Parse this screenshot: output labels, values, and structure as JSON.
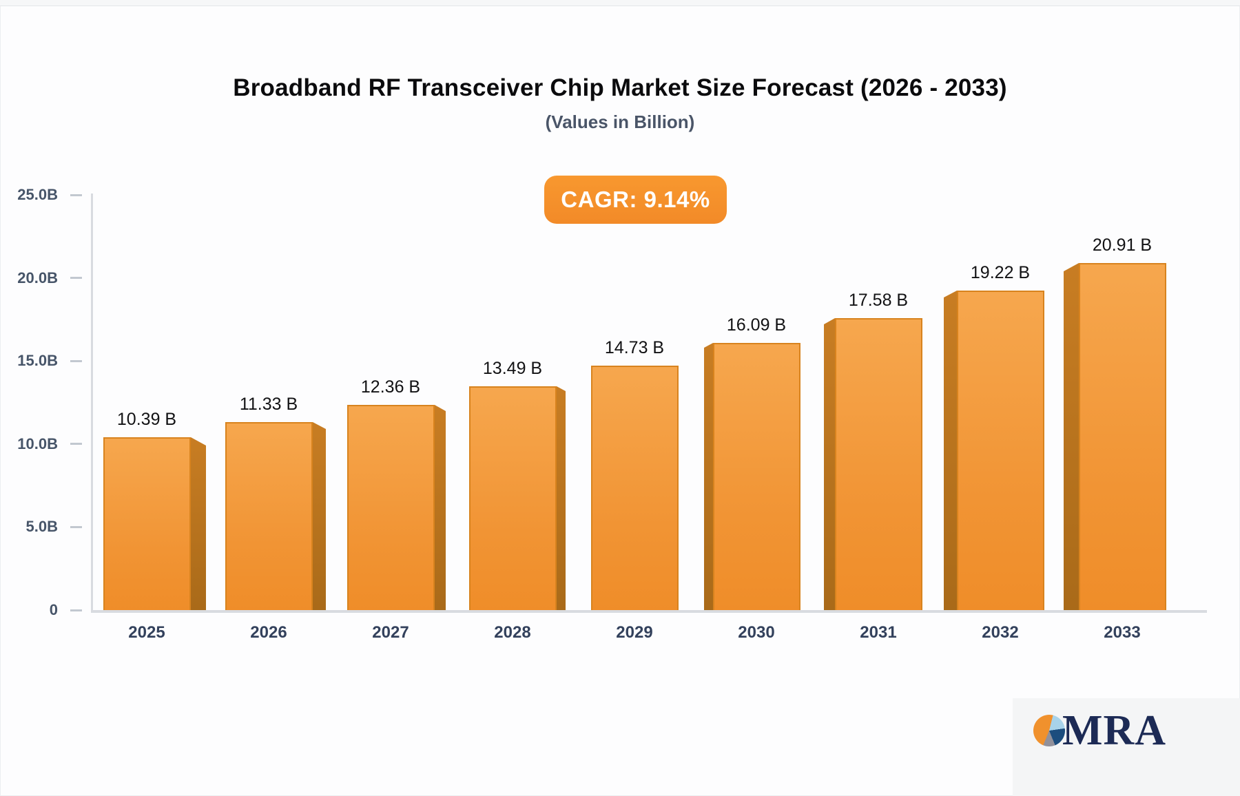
{
  "header": {
    "title": "Broadband RF Transceiver Chip Market Size Forecast (2026 - 2033)",
    "subtitle": "(Values in Billion)"
  },
  "badge": {
    "label": "CAGR: 9.14%",
    "color": "#f28a28"
  },
  "logo": {
    "text": "MRA"
  },
  "chart_data": {
    "type": "bar",
    "title": "Broadband RF Transceiver Chip Market Size Forecast (2026 - 2033)",
    "subtitle": "(Values in Billion)",
    "cagr": "9.14%",
    "categories": [
      "2025",
      "2026",
      "2027",
      "2028",
      "2029",
      "2030",
      "2031",
      "2032",
      "2033"
    ],
    "values": [
      10.39,
      11.33,
      12.36,
      13.49,
      14.73,
      16.09,
      17.58,
      19.22,
      20.91
    ],
    "bar_labels": [
      "10.39 B",
      "11.33 B",
      "12.36 B",
      "13.49 B",
      "14.73 B",
      "16.09 B",
      "17.58 B",
      "19.22 B",
      "20.91 B"
    ],
    "yticks": [
      {
        "value": 0,
        "label": "0"
      },
      {
        "value": 5,
        "label": "5.0B"
      },
      {
        "value": 10,
        "label": "10.0B"
      },
      {
        "value": 15,
        "label": "15.0B"
      },
      {
        "value": 20,
        "label": "20.0B"
      },
      {
        "value": 25,
        "label": "25.0B"
      }
    ],
    "ylim": [
      0,
      25
    ],
    "xlabel": "",
    "ylabel": "",
    "legend": "none",
    "grid": "off",
    "colors": {
      "bar_top": "#f6a74e",
      "bar_bottom": "#ef8d29",
      "bar_border": "#d8831e",
      "bar_side": "#b87221",
      "axis": "#d8dbe0",
      "badge": "#f28a28",
      "title_text": "#0b0b0d",
      "subtitle_text": "#4a5568"
    }
  }
}
